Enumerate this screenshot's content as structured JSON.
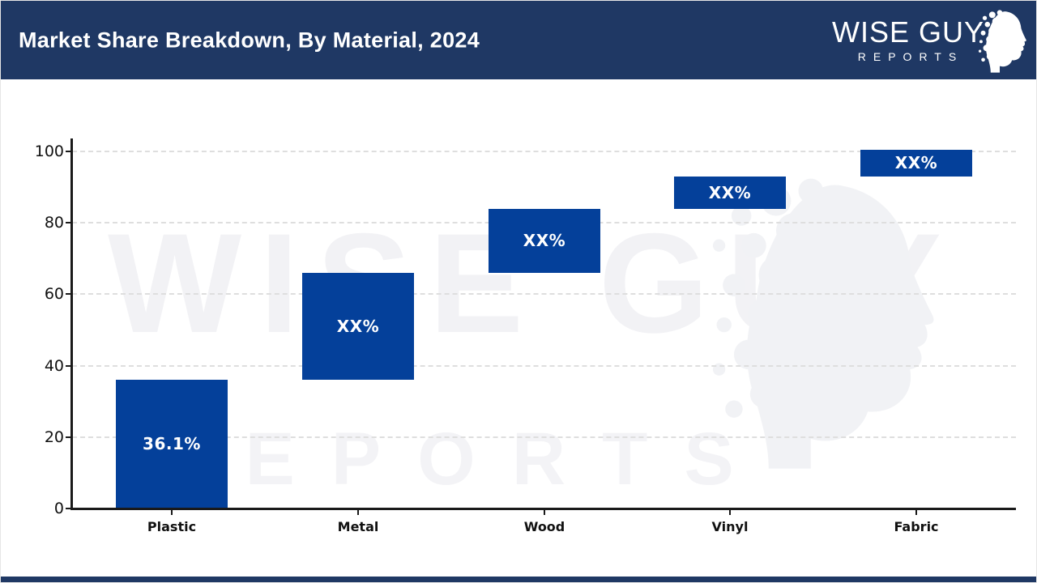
{
  "header": {
    "title": "Market Share Breakdown, By Material, 2024",
    "bg_color": "#1F3864",
    "logo": {
      "line1": "WISE GUY",
      "line2": "REPORTS"
    }
  },
  "watermark": {
    "line1": "WISE GUY",
    "line2": "REPORTS"
  },
  "chart_data": {
    "type": "waterfall",
    "title": "Market Share Breakdown, By Material, 2024",
    "categories": [
      "Plastic",
      "Metal",
      "Wood",
      "Vinyl",
      "Fabric"
    ],
    "segments": [
      {
        "category": "Plastic",
        "start": 0,
        "end": 36.1,
        "label": "36.1%"
      },
      {
        "category": "Metal",
        "start": 36.1,
        "end": 66,
        "label": "XX%"
      },
      {
        "category": "Wood",
        "start": 66,
        "end": 84,
        "label": "XX%"
      },
      {
        "category": "Vinyl",
        "start": 84,
        "end": 93,
        "label": "XX%"
      },
      {
        "category": "Fabric",
        "start": 93,
        "end": 100.5,
        "label": "XX%"
      }
    ],
    "ylim": [
      0,
      100
    ],
    "yticks": [
      0,
      20,
      40,
      60,
      80,
      100
    ],
    "grid": true,
    "legend": false,
    "bar_color": "#04409A",
    "label_color": "#ffffff",
    "axis_color": "#1a1a1a"
  }
}
